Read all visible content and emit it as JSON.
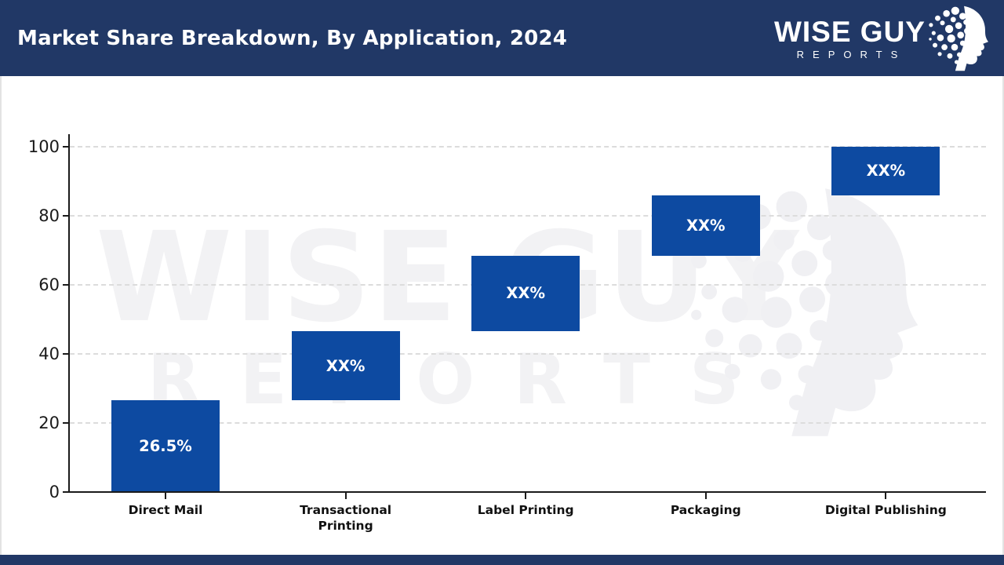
{
  "header": {
    "title": "Market Share Breakdown, By Application, 2024",
    "logo": {
      "line1": "WISE GUY",
      "line2": "REPORTS"
    }
  },
  "watermark": {
    "line1": "WISE GUY",
    "line2": "REPORTS"
  },
  "colors": {
    "header_navy": "#213866",
    "bar_blue": "#0d4aa1",
    "grid_gray": "#dcdcdc",
    "axis_black": "#1a1a1a",
    "value_label_white": "#ffffff",
    "watermark_gray": "#f2f2f4"
  },
  "chart_data": {
    "type": "bar",
    "subtype": "floating-waterfall",
    "title": "Market Share Breakdown, By Application, 2024",
    "categories": [
      "Direct Mail",
      "Transactional Printing",
      "Label Printing",
      "Packaging",
      "Digital Publishing"
    ],
    "segments": [
      {
        "category": "Direct Mail",
        "axis_label": "Direct Mail",
        "start": 0,
        "end": 26.5,
        "value_label": "26.5%"
      },
      {
        "category": "Transactional Printing",
        "axis_label": "Transactional\nPrinting",
        "start": 26.5,
        "end": 46.5,
        "value_label": "XX%"
      },
      {
        "category": "Label Printing",
        "axis_label": "Label Printing",
        "start": 46.5,
        "end": 68.5,
        "value_label": "XX%"
      },
      {
        "category": "Packaging",
        "axis_label": "Packaging",
        "start": 68.5,
        "end": 86,
        "value_label": "XX%"
      },
      {
        "category": "Digital Publishing",
        "axis_label": "Digital Publishing",
        "start": 86,
        "end": 100,
        "value_label": "XX%"
      }
    ],
    "yticks": [
      0,
      20,
      40,
      60,
      80,
      100
    ],
    "ylim": [
      0,
      104
    ],
    "xlabel": "",
    "ylabel": "",
    "grid": "horizontal-dashed",
    "legend": null
  }
}
